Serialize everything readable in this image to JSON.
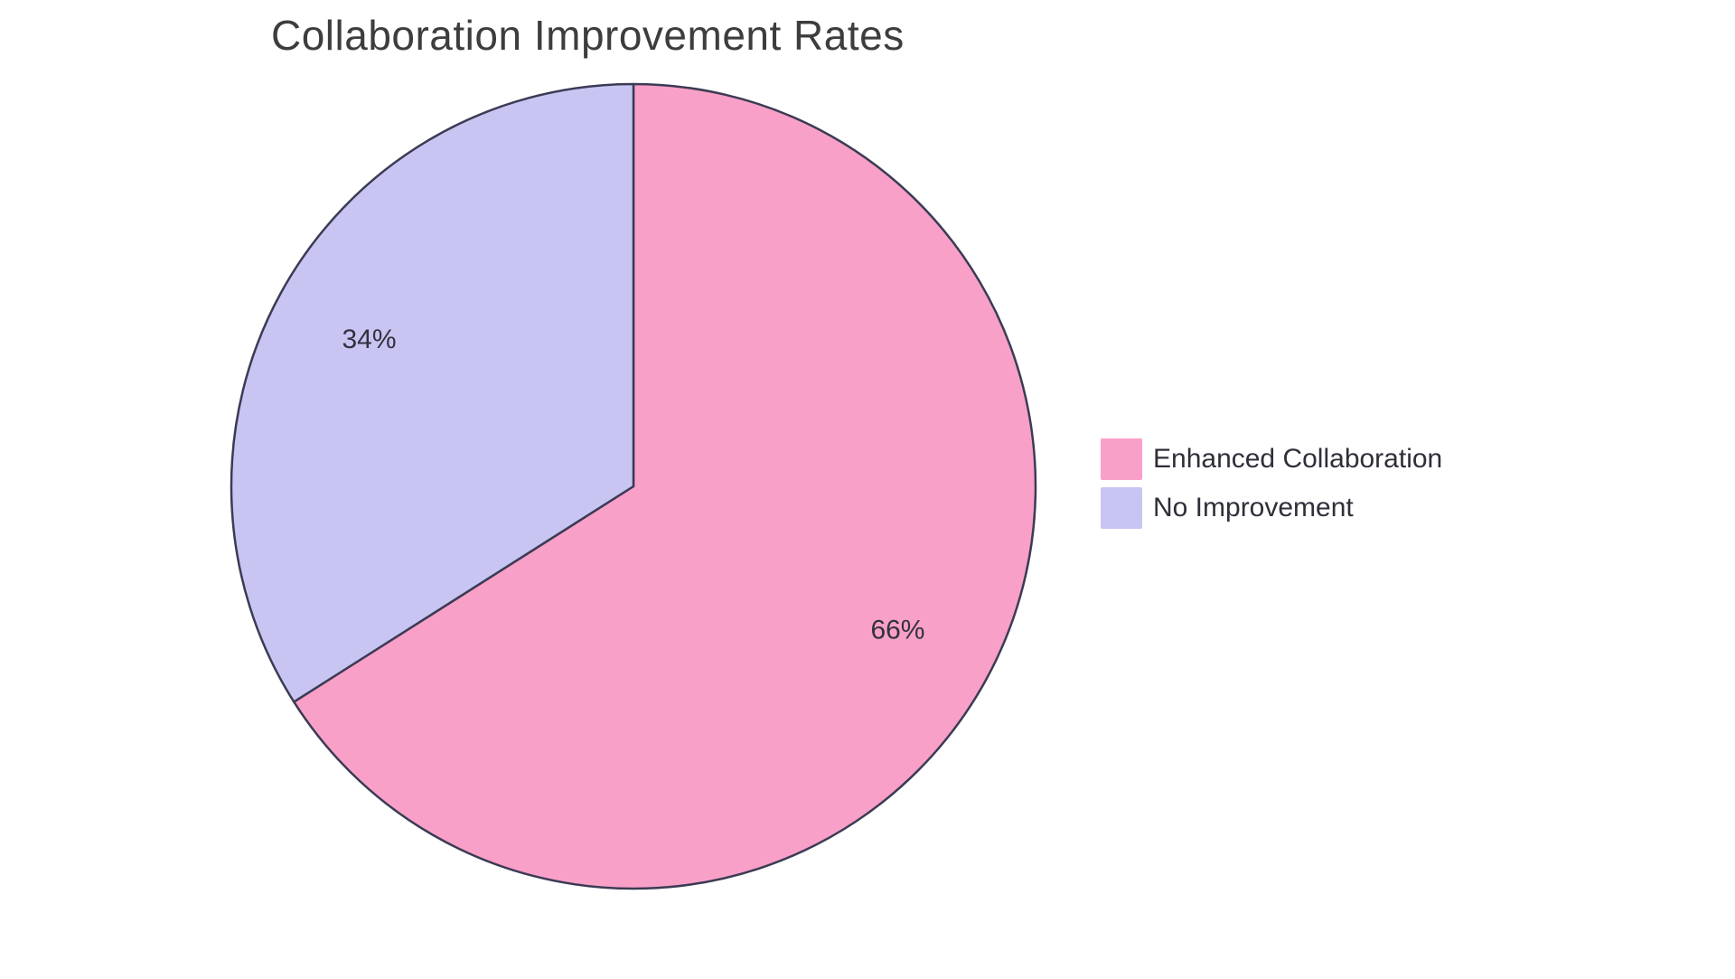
{
  "page": {
    "background_color": "#FFFFFF"
  },
  "chart_data": {
    "type": "pie",
    "title": "Collaboration Improvement Rates",
    "labels": [
      "Enhanced Collaboration",
      "No Improvement"
    ],
    "values": [
      66,
      34
    ],
    "percent_labels": [
      "66%",
      "34%"
    ],
    "colors": [
      "#F9A0C8",
      "#C9C5F3"
    ],
    "slice_border_color": "#3B3B54",
    "label_color": "#32323E",
    "start_angle": "top",
    "direction": "clockwise",
    "legend": {
      "position": "right",
      "items": [
        {
          "label": "Enhanced Collaboration",
          "color": "#F9A0C8"
        },
        {
          "label": "No Improvement",
          "color": "#C9C5F3"
        }
      ]
    }
  }
}
